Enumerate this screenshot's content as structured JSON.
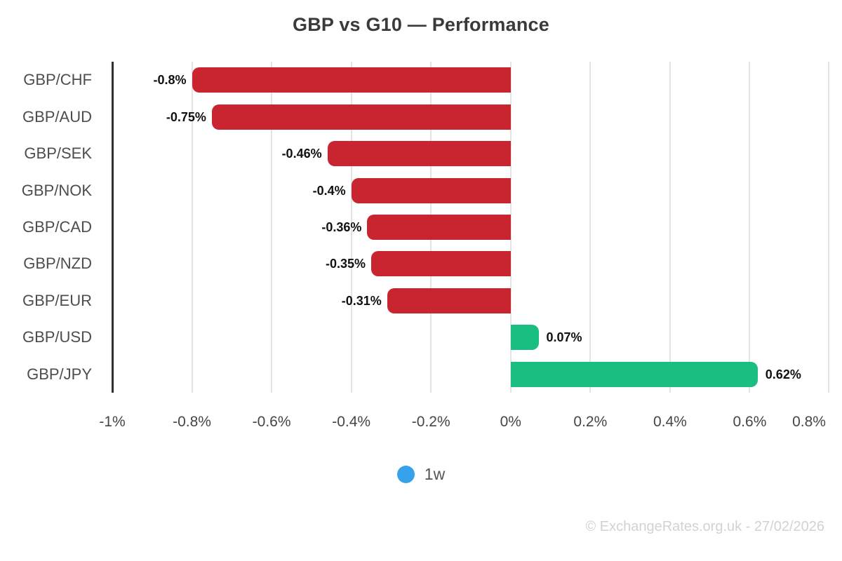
{
  "title": "GBP vs G10 — Performance",
  "footer": "© ExchangeRates.org.uk - 27/02/2026",
  "legend": {
    "label": "1w",
    "dot_color": "#36a2eb"
  },
  "colors": {
    "negative_bar": "#c92530",
    "positive_bar": "#19be80",
    "gridline": "#e4e4e4",
    "axis_line": "#303030"
  },
  "chart_data": {
    "type": "bar",
    "orientation": "horizontal",
    "title": "GBP vs G10 — Performance",
    "xlabel": "",
    "ylabel": "",
    "grid": "vertical",
    "legend_position": "bottom",
    "series_name": "1w",
    "categories": [
      "GBP/CHF",
      "GBP/AUD",
      "GBP/SEK",
      "GBP/NOK",
      "GBP/CAD",
      "GBP/NZD",
      "GBP/EUR",
      "GBP/USD",
      "GBP/JPY"
    ],
    "values": [
      -0.8,
      -0.75,
      -0.46,
      -0.4,
      -0.36,
      -0.35,
      -0.31,
      0.07,
      0.62
    ],
    "value_labels": [
      "-0.8%",
      "-0.75%",
      "-0.46%",
      "-0.4%",
      "-0.36%",
      "-0.35%",
      "-0.31%",
      "0.07%",
      "0.62%"
    ],
    "xlim": [
      -1,
      0.8
    ],
    "x_ticks": [
      {
        "value": -1,
        "label": "-1%"
      },
      {
        "value": -0.8,
        "label": "-0.8%"
      },
      {
        "value": -0.6,
        "label": "-0.6%"
      },
      {
        "value": -0.4,
        "label": "-0.4%"
      },
      {
        "value": -0.2,
        "label": "-0.2%"
      },
      {
        "value": 0,
        "label": "0%"
      },
      {
        "value": 0.2,
        "label": "0.2%"
      },
      {
        "value": 0.4,
        "label": "0.4%"
      },
      {
        "value": 0.6,
        "label": "0.6%"
      },
      {
        "value": 0.8,
        "label": "0.8%"
      }
    ]
  }
}
